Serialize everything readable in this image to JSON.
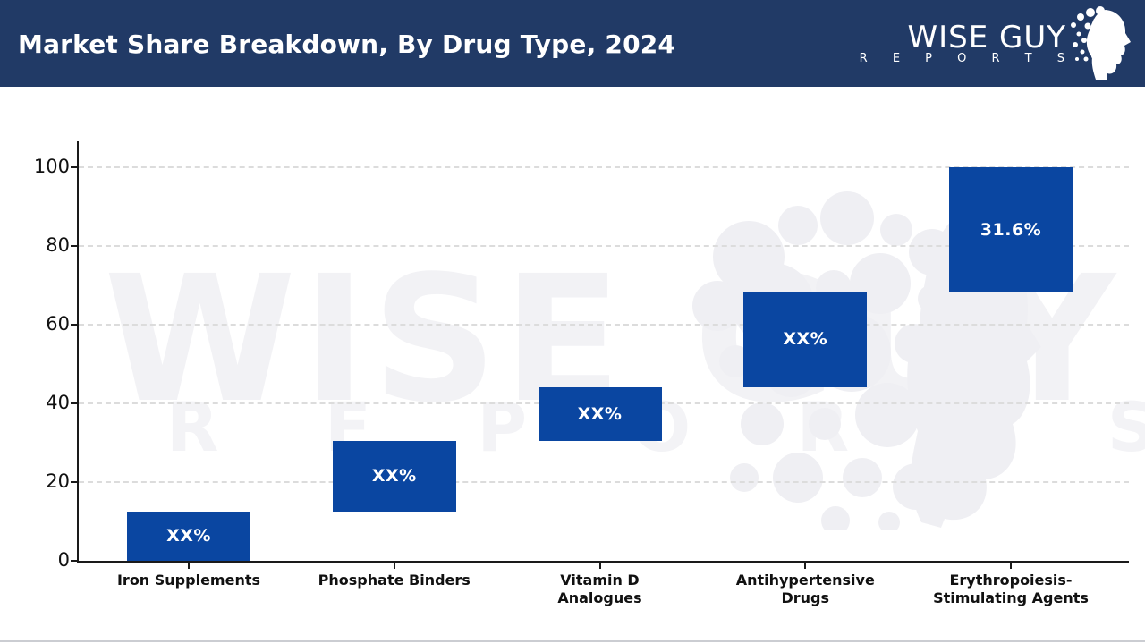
{
  "header": {
    "title": "Market Share Breakdown, By Drug Type, 2024",
    "bg_color": "#213A66",
    "logo": {
      "name": "WISE GUY",
      "sub": "R E P O R T S"
    }
  },
  "watermark": {
    "line1": "WISE GUY",
    "line2": "R E P O R T S"
  },
  "chart_data": {
    "type": "bar",
    "subtype": "waterfall",
    "title": "Market Share Breakdown, By Drug Type, 2024",
    "xlabel": "",
    "ylabel": "",
    "ylim": [
      0,
      106
    ],
    "yticks": [
      0,
      20,
      40,
      60,
      80,
      100
    ],
    "grid": "horizontal-dashed",
    "legend": "none",
    "bar_color": "#0A46A1",
    "categories": [
      {
        "label_lines": [
          "Iron Supplements"
        ]
      },
      {
        "label_lines": [
          "Phosphate Binders"
        ]
      },
      {
        "label_lines": [
          "Vitamin D",
          "Analogues"
        ]
      },
      {
        "label_lines": [
          "Antihypertensive",
          "Drugs"
        ]
      },
      {
        "label_lines": [
          "Erythropoiesis-",
          "Stimulating Agents"
        ]
      }
    ],
    "series": [
      {
        "name": "Market Share (%)",
        "segments": [
          {
            "start": 0,
            "end": 12.6,
            "label": "XX%"
          },
          {
            "start": 12.6,
            "end": 30.4,
            "label": "XX%"
          },
          {
            "start": 30.4,
            "end": 44.2,
            "label": "XX%"
          },
          {
            "start": 44.2,
            "end": 68.4,
            "label": "XX%"
          },
          {
            "start": 68.4,
            "end": 100,
            "label": "31.6%"
          }
        ]
      }
    ]
  }
}
